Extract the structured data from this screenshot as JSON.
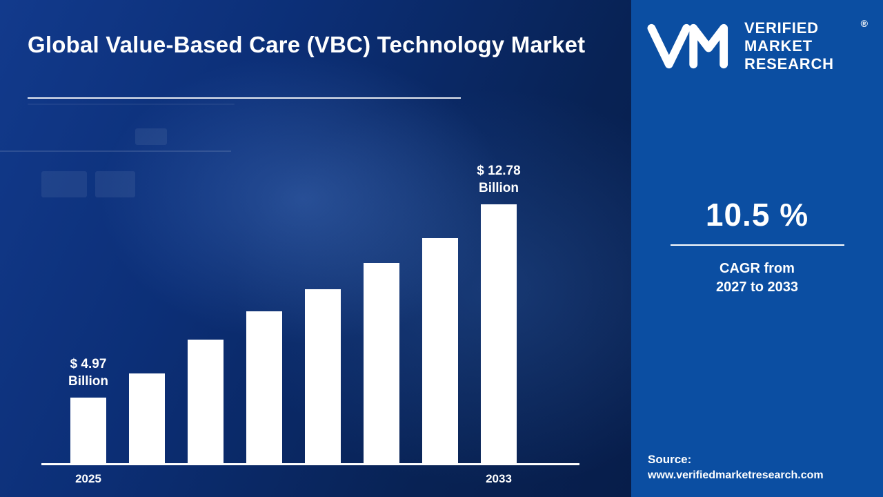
{
  "header": {
    "title": "Global Value-Based Care (VBC) Technology Market"
  },
  "chart_data": {
    "type": "bar",
    "title": "Global Value-Based Care (VBC) Technology Market",
    "unit": "USD Billion",
    "categories": [
      "2025",
      "",
      "",
      "",
      "",
      "",
      "",
      "2033"
    ],
    "values": [
      4.97,
      5.95,
      7.3,
      8.45,
      9.35,
      10.4,
      11.4,
      12.78
    ],
    "bar_labels": {
      "first": {
        "line1": "$ 4.97",
        "line2": "Billion"
      },
      "last": {
        "line1": "$ 12.78",
        "line2": "Billion"
      }
    },
    "ylim": [
      0,
      14
    ],
    "bar_color": "#ffffff",
    "grid": false,
    "legend": false,
    "x_tick_labels_visible": [
      "2025",
      "2033"
    ]
  },
  "sidebar": {
    "logo": {
      "brand_line1": "VERIFIED",
      "brand_line2": "MARKET",
      "brand_line3": "RESEARCH",
      "registered_mark": "®"
    },
    "cagr": {
      "value": "10.5 %",
      "label_line1": "CAGR from",
      "label_line2": "2027 to 2033"
    },
    "source": {
      "label": "Source:",
      "url": "www.verifiedmarketresearch.com"
    }
  },
  "colors": {
    "left_background": "#0c2f77",
    "sidebar_background": "#0b4ea2",
    "bar": "#ffffff",
    "text": "#ffffff"
  }
}
